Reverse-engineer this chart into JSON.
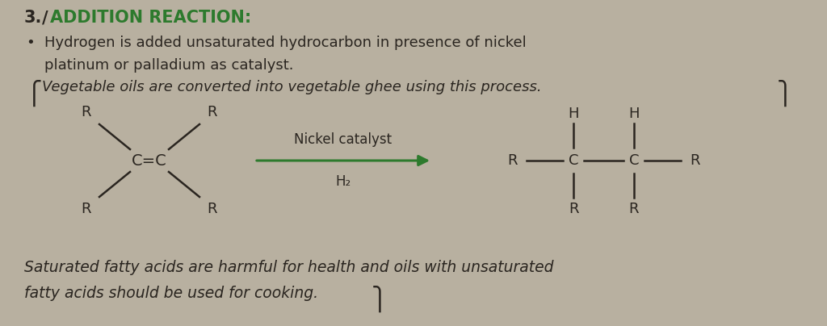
{
  "background_color": "#b8b0a0",
  "title_number": "3.",
  "title_slash": "/",
  "title_text": "ADDITION REACTION:",
  "title_color": "#2d7a2d",
  "body_text_1a": "Hydrogen is added unsaturated hydrocarbon in presence of nickel",
  "body_text_1b": "platinum or palladium as catalyst.",
  "body_text_2": "Vegetable oils are converted into vegetable ghee using this process.",
  "footer_text_1": "Saturated fatty acids are harmful for health and oils with unsaturated",
  "footer_text_2": "fatty acids should be used for cooking.",
  "arrow_color": "#2d7a2d",
  "text_color": "#2a2520",
  "reaction_label_top": "Nickel catalyst",
  "reaction_label_bottom": "H₂",
  "fig_width": 10.24,
  "fig_height": 4.04,
  "dpi": 100
}
